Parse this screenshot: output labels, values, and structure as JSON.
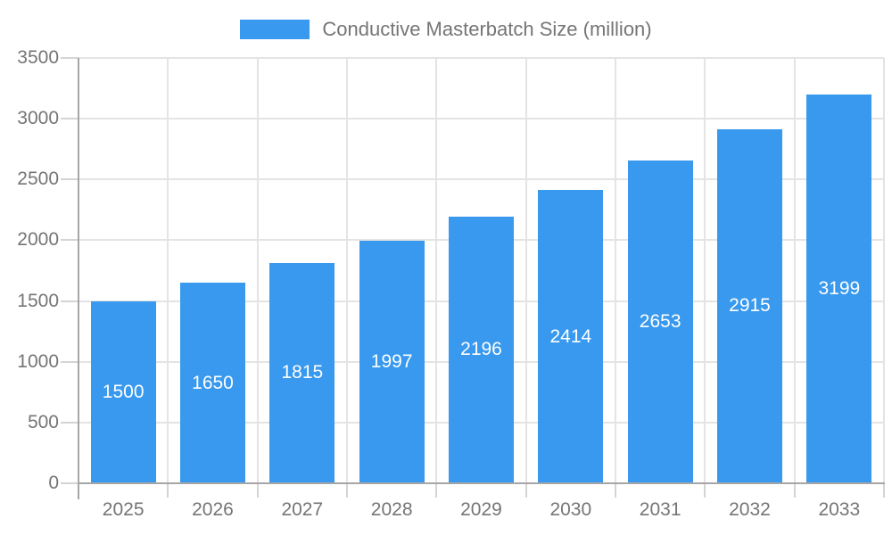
{
  "chart_data": {
    "type": "bar",
    "title": "Conductive Masterbatch Size (million)",
    "legend": [
      "Conductive Masterbatch Size (million)"
    ],
    "legend_position": "top",
    "categories": [
      "2025",
      "2026",
      "2027",
      "2028",
      "2029",
      "2030",
      "2031",
      "2032",
      "2033"
    ],
    "values": [
      1500,
      1650,
      1815,
      1997,
      2196,
      2414,
      2653,
      2915,
      3199
    ],
    "xlabel": "",
    "ylabel": "",
    "ylim": [
      0,
      3500
    ],
    "ytick_step": 500,
    "grid": true,
    "bar_label_position": "inside-center",
    "colors": {
      "bar": "#3899ee",
      "bar_label": "#ffffff",
      "axis_text": "#757575",
      "legend_text": "#757575",
      "grid_line": "#e4e4e4",
      "axis_line": "#a6a6a6",
      "tick_mark": "#d4d4d4",
      "background": "#ffffff"
    }
  }
}
